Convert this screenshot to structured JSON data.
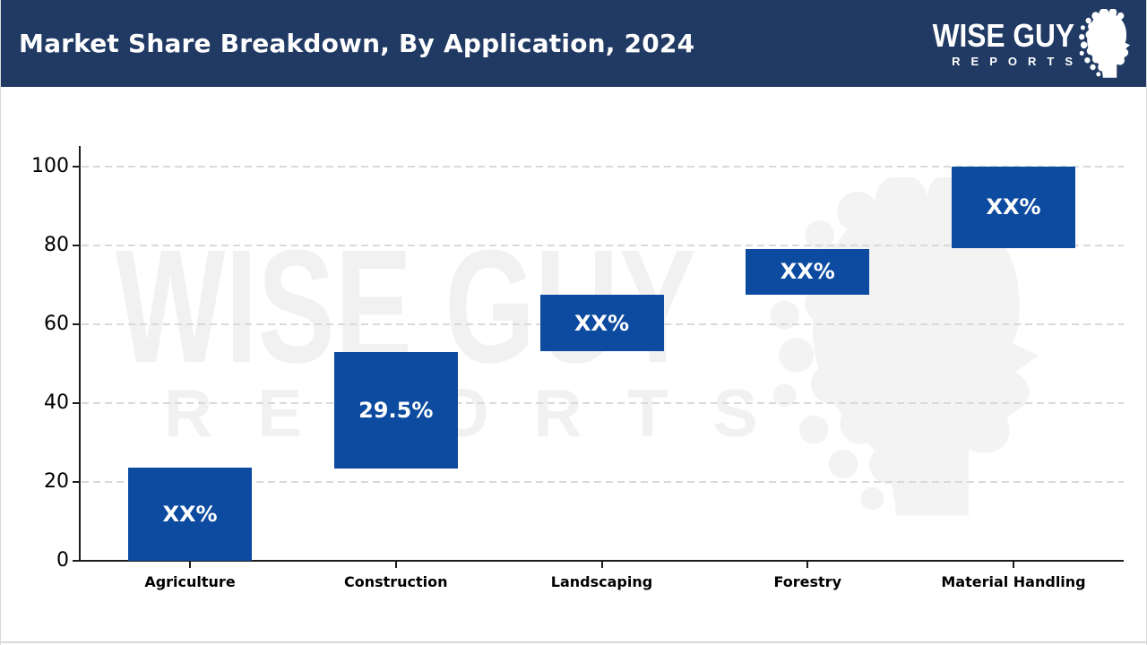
{
  "header": {
    "title": "Market Share Breakdown, By Application, 2024",
    "bg_color": "#213A64",
    "logo": {
      "line1": "WISE GUY",
      "line2": "REPORTS"
    }
  },
  "watermark": {
    "line1": "WISE GUY",
    "line2": "REPORTS"
  },
  "chart_data": {
    "type": "bar",
    "subtype": "waterfall-floating-bars",
    "title": "Market Share Breakdown, By Application, 2024",
    "categories": [
      "Agriculture",
      "Construction",
      "Landscaping",
      "Forestry",
      "Material Handling"
    ],
    "segments": [
      {
        "category": "Agriculture",
        "start": 0,
        "end": 23.6,
        "label": "XX%"
      },
      {
        "category": "Construction",
        "start": 23.5,
        "end": 53.0,
        "label": "29.5%"
      },
      {
        "category": "Landscaping",
        "start": 53.2,
        "end": 67.4,
        "label": "XX%"
      },
      {
        "category": "Forestry",
        "start": 67.4,
        "end": 79.2,
        "label": "XX%"
      },
      {
        "category": "Material Handling",
        "start": 79.4,
        "end": 100,
        "label": "XX%"
      }
    ],
    "xlabel": "",
    "ylabel": "",
    "ylim": [
      0,
      100
    ],
    "yticks": [
      0,
      20,
      40,
      60,
      80,
      100
    ],
    "grid": "horizontal-dashed",
    "legend": "none",
    "bar_color": "#0C4B9F",
    "value_label_color": "#ffffff",
    "axis_color": "#1c1c1c",
    "gridline_color": "#d9d9d9"
  }
}
